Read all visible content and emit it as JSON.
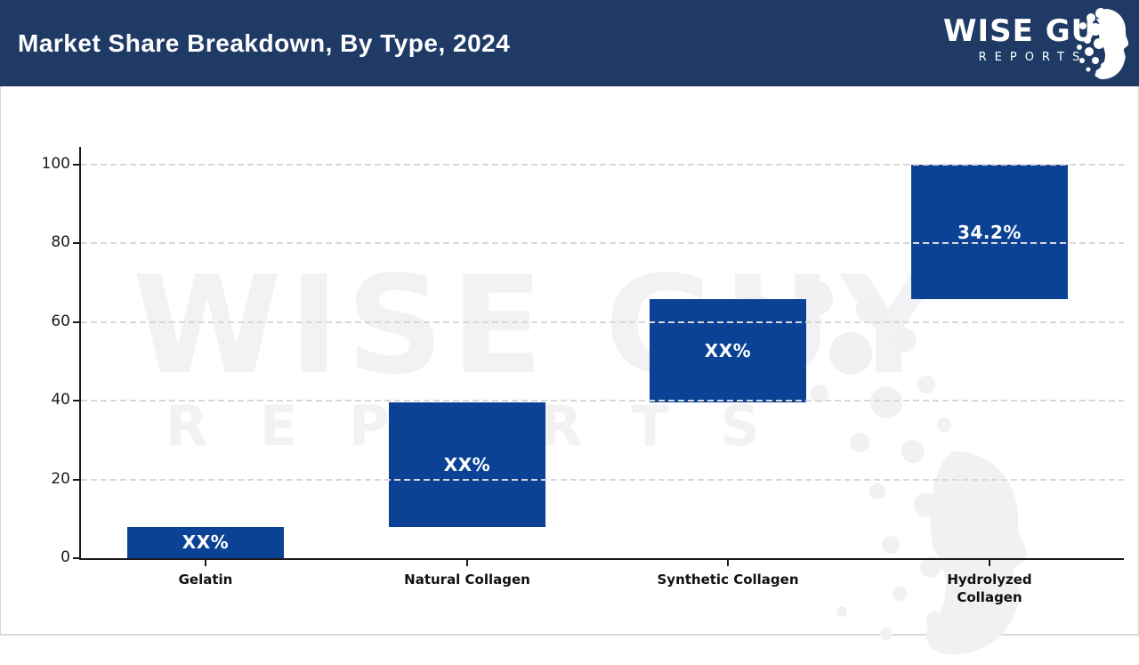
{
  "header": {
    "title": "Market Share Breakdown, By Type, 2024",
    "bg_color": "#203a66",
    "logo": {
      "line1": "WISE GUY",
      "line2": "REPORTS"
    }
  },
  "watermark": {
    "line1": "WISE GUY",
    "line2": "REPORTS"
  },
  "chart_data": {
    "type": "bar",
    "variant": "floating-waterfall",
    "title": "Market Share Breakdown, By Type, 2024",
    "categories": [
      "Gelatin",
      "Natural Collagen",
      "Synthetic Collagen",
      "Hydrolyzed\nCollagen"
    ],
    "bars": [
      {
        "category": "Gelatin",
        "start": 0,
        "end": 8,
        "label": "XX%"
      },
      {
        "category": "Natural Collagen",
        "start": 8,
        "end": 39.5,
        "label": "XX%"
      },
      {
        "category": "Synthetic Collagen",
        "start": 39.5,
        "end": 65.8,
        "label": "XX%"
      },
      {
        "category": "Hydrolyzed Collagen",
        "start": 65.8,
        "end": 100,
        "label": "34.2%"
      }
    ],
    "yticks": [
      0,
      20,
      40,
      60,
      80,
      100
    ],
    "ylim": [
      0,
      105
    ],
    "xlabel": "",
    "ylabel": "",
    "grid": "horizontal-dashed",
    "legend": false,
    "bar_color": "#0b4295",
    "grid_color": "#d8d8d8",
    "axis_color": "#1a1a1a"
  }
}
